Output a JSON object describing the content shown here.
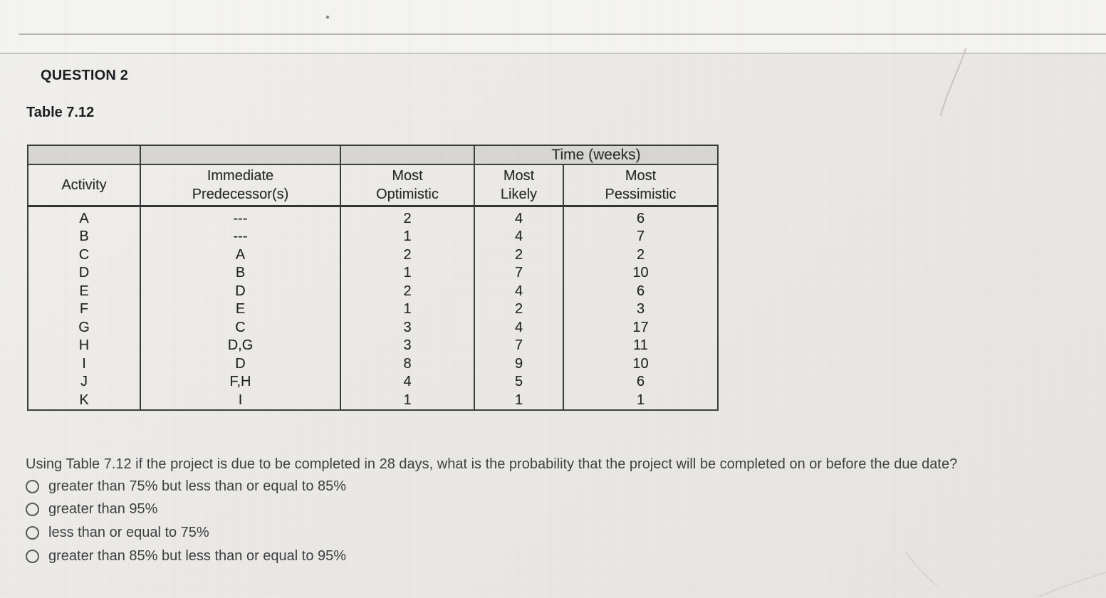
{
  "header": {
    "question_label": "QUESTION 2",
    "table_caption": "Table 7.12"
  },
  "table": {
    "time_span_header": "Time (weeks)",
    "columns": [
      {
        "line1": "Activity",
        "line2": ""
      },
      {
        "line1": "Immediate",
        "line2": "Predecessor(s)"
      },
      {
        "line1": "Most",
        "line2": "Optimistic"
      },
      {
        "line1": "Most",
        "line2": "Likely"
      },
      {
        "line1": "Most",
        "line2": "Pessimistic"
      }
    ],
    "rows": [
      [
        "A",
        "---",
        "2",
        "4",
        "6"
      ],
      [
        "B",
        "---",
        "1",
        "4",
        "7"
      ],
      [
        "C",
        "A",
        "2",
        "2",
        "2"
      ],
      [
        "D",
        "B",
        "1",
        "7",
        "10"
      ],
      [
        "E",
        "D",
        "2",
        "4",
        "6"
      ],
      [
        "F",
        "E",
        "1",
        "2",
        "3"
      ],
      [
        "G",
        "C",
        "3",
        "4",
        "17"
      ],
      [
        "H",
        "D,G",
        "3",
        "7",
        "11"
      ],
      [
        "I",
        "D",
        "8",
        "9",
        "10"
      ],
      [
        "J",
        "F,H",
        "4",
        "5",
        "6"
      ],
      [
        "K",
        "I",
        "1",
        "1",
        "1"
      ]
    ]
  },
  "question": {
    "text": "Using Table 7.12 if the project is due to be completed in 28 days, what is the probability that the project will be completed on or before the due date?",
    "options": [
      "greater than 75% but less than or equal to 85%",
      "greater than 95%",
      "less than or equal to 75%",
      "greater than 85% but less than or equal to 95%"
    ]
  },
  "colors": {
    "page_background": "#ebe9e6",
    "top_strip_background": "#f5f4f1",
    "divider_line": "#b5b3af",
    "table_border": "#39393b",
    "table_band_background": "#d7d6d2",
    "heading_text": "#1a1a1e",
    "body_text": "#3b3b3d"
  }
}
